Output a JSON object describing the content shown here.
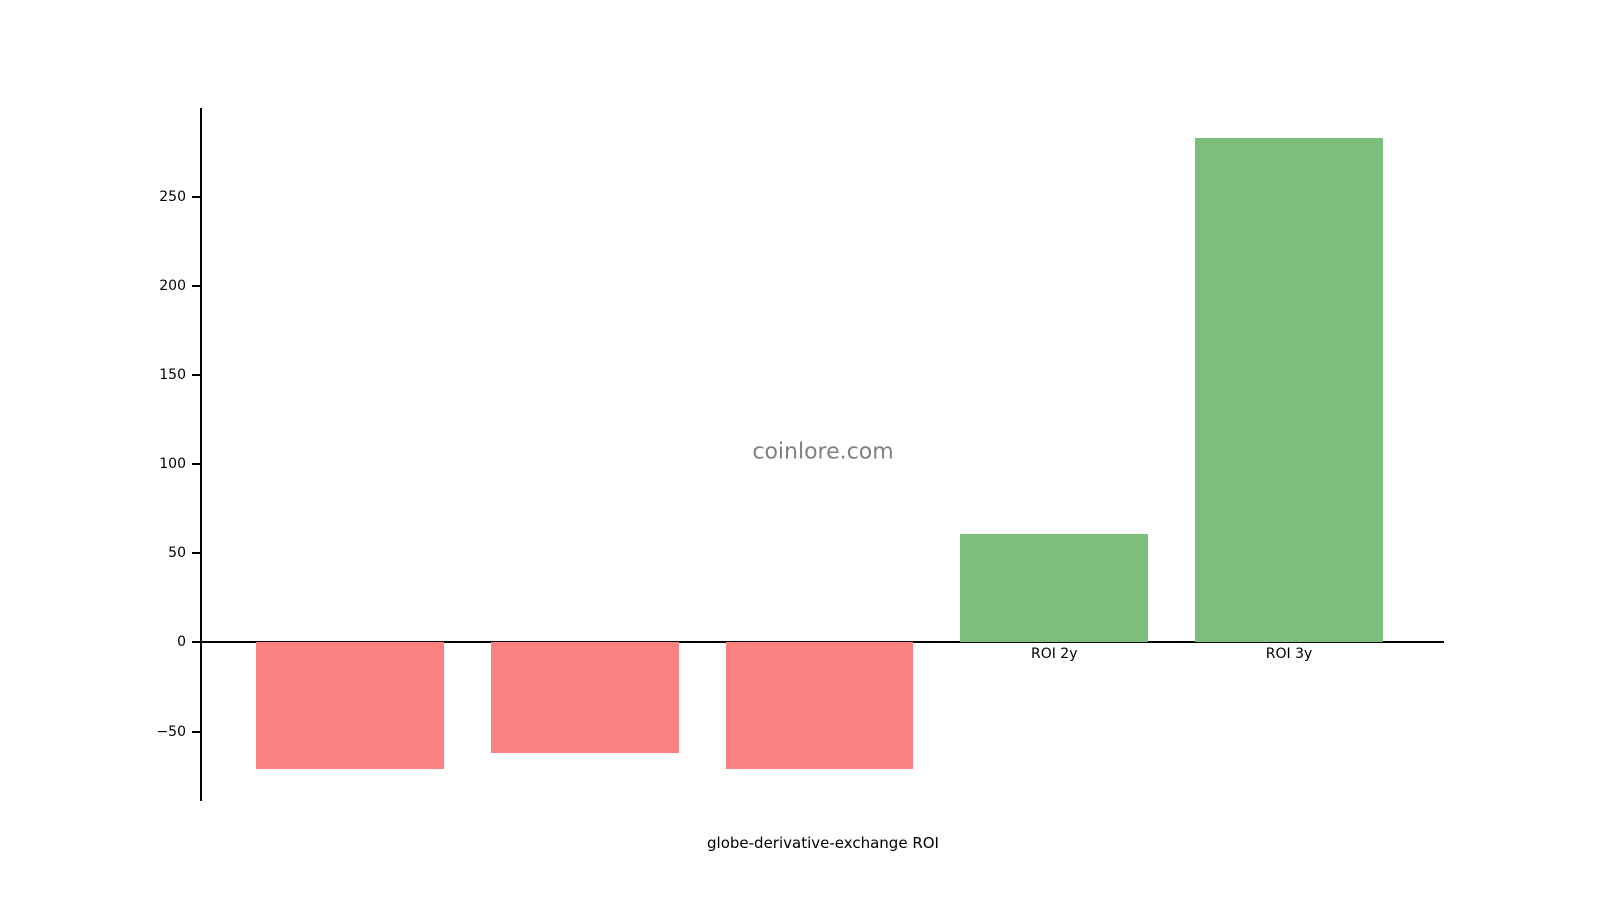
{
  "page": {
    "watermark": "coinlore.com",
    "title": "globe-derivative-exchange ROI"
  },
  "colors": {
    "positive_bar": "#7cbf7c",
    "negative_bar": "#fc8181",
    "axis": "#000000",
    "watermark_text": "#808080",
    "label_text": "#000000",
    "background": "#ffffff"
  },
  "chart_data": {
    "type": "bar",
    "title": "globe-derivative-exchange ROI",
    "watermark": "coinlore.com",
    "categories": [
      "",
      "",
      "",
      "ROI 2y",
      "ROI 3y"
    ],
    "values": [
      -71,
      -62,
      -71,
      61,
      283
    ],
    "bar_colors": [
      "#fc8181",
      "#fc8181",
      "#fc8181",
      "#7cbf7c",
      "#7cbf7c"
    ],
    "xlabel": "",
    "ylabel": "",
    "yticks": [
      -50,
      0,
      50,
      100,
      150,
      200,
      250
    ],
    "ytick_labels": [
      "−50",
      "0",
      "50",
      "100",
      "150",
      "200",
      "250"
    ],
    "ylim": [
      -89,
      300
    ],
    "xlim": [
      -0.63,
      4.66
    ],
    "bar_width_units": 0.8,
    "grid": false,
    "legend": "none",
    "x_axis_position": "zero"
  }
}
